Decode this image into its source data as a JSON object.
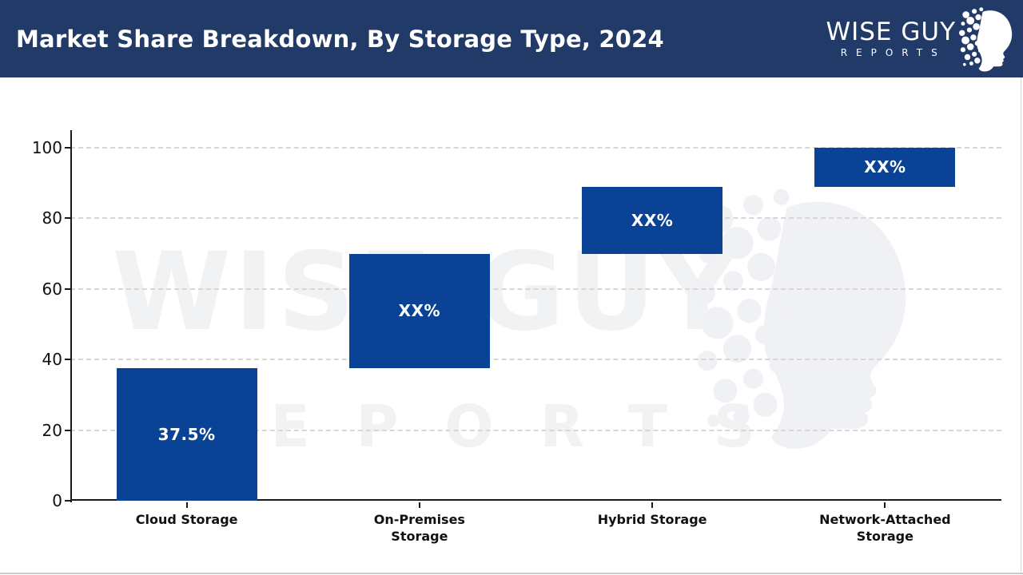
{
  "header": {
    "title": "Market Share Breakdown, By Storage Type, 2024",
    "logo": {
      "line1": "WISE GUY",
      "line2": "REPORTS"
    }
  },
  "watermark": {
    "line1": "WISE GUY",
    "line2": "REPORTS"
  },
  "colors": {
    "header_bg": "#223a68",
    "bar_blue": "#0a4296",
    "bar_label": "#ffffff",
    "watermark_gray": "#f1f2f4",
    "gridline_gray": "#d7d7d7"
  },
  "chart_data": {
    "type": "bar",
    "variant": "stacked-waterfall",
    "title": "Market Share Breakdown, By Storage Type, 2024",
    "categories": [
      "Cloud Storage",
      "On-Premises Storage",
      "Hybrid Storage",
      "Network-Attached Storage"
    ],
    "category_label_lines": [
      [
        "Cloud Storage"
      ],
      [
        "On-Premises",
        "Storage"
      ],
      [
        "Hybrid Storage"
      ],
      [
        "Network-Attached",
        "Storage"
      ]
    ],
    "segments": [
      {
        "category": "Cloud Storage",
        "start": 0,
        "end": 37.5,
        "value": 37.5,
        "label": "37.5%"
      },
      {
        "category": "On-Premises Storage",
        "start": 37.5,
        "end": 70,
        "value": 32.5,
        "label": "XX%"
      },
      {
        "category": "Hybrid Storage",
        "start": 70,
        "end": 89,
        "value": 19,
        "label": "XX%"
      },
      {
        "category": "Network-Attached Storage",
        "start": 89,
        "end": 100,
        "value": 11,
        "label": "XX%"
      }
    ],
    "xlabel": "",
    "ylabel": "",
    "ylim": [
      0,
      100
    ],
    "yticks": [
      0,
      20,
      40,
      60,
      80,
      100
    ],
    "grid": "horizontal-dashed",
    "legend": "none",
    "bar_color": "#0a4296"
  }
}
